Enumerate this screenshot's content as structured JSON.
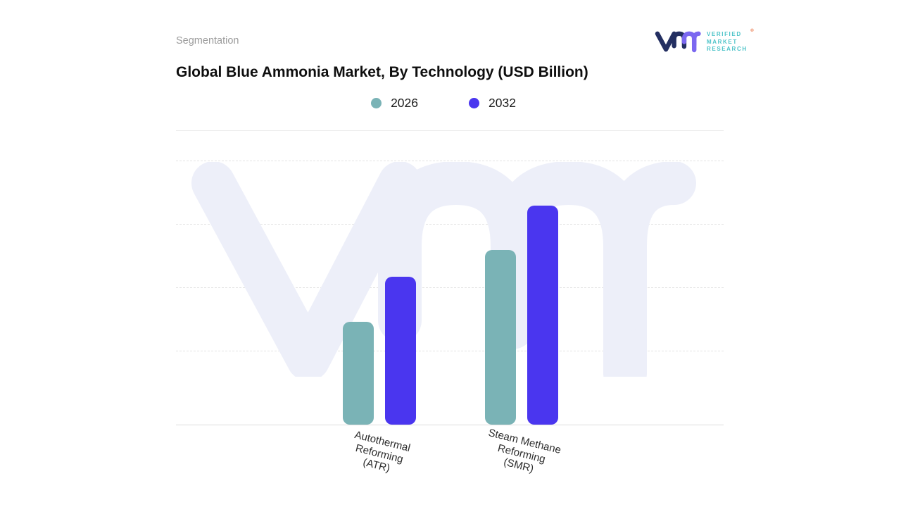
{
  "header": {
    "eyebrow": "Segmentation",
    "title": "Global Blue Ammonia Market, By Technology (USD Billion)"
  },
  "logo": {
    "brand": "VMR",
    "lines": [
      "VERIFIED",
      "MARKET",
      "RESEARCH"
    ],
    "registered_mark": "®",
    "colors": {
      "mark_primary": "#232f61",
      "mark_accent": "#7b68f0",
      "text": "#4cc3c8",
      "registered": "#e8622d"
    }
  },
  "chart_data": {
    "type": "bar",
    "title": "Global Blue Ammonia Market, By Technology (USD Billion)",
    "categories": [
      "Autothermal\nReforming\n(ATR)",
      "Steam Methane\nReforming\n(SMR)"
    ],
    "series": [
      {
        "name": "2026",
        "color": "#7ab3b6",
        "values": [
          39,
          66
        ]
      },
      {
        "name": "2032",
        "color": "#4a36ef",
        "values": [
          56,
          83
        ]
      }
    ],
    "xlabel": "",
    "ylabel": "",
    "ylim": [
      0,
      100
    ],
    "y_axis_labels_visible": false,
    "grid": "horizontal-dashed",
    "legend_position": "top",
    "watermark_text": "vmr",
    "watermark_color": "#edeff9"
  }
}
